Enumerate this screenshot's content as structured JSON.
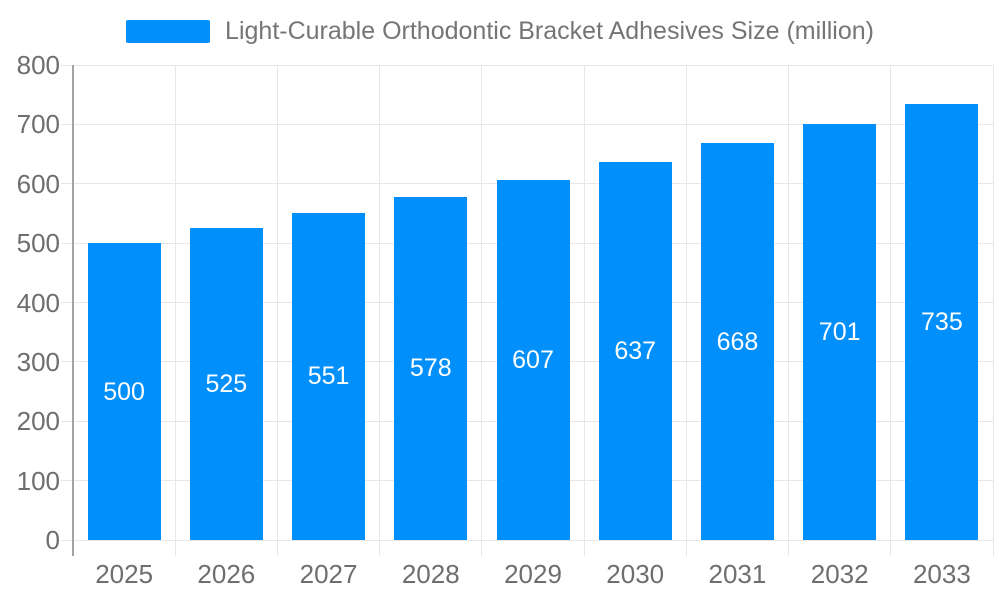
{
  "legend": {
    "label": "Light-Curable Orthodontic Bracket Adhesives Size (million)",
    "swatch_color": "#008FFB"
  },
  "chart_data": {
    "type": "bar",
    "title": "Light-Curable Orthodontic Bracket Adhesives Size (million)",
    "categories": [
      "2025",
      "2026",
      "2027",
      "2028",
      "2029",
      "2030",
      "2031",
      "2032",
      "2033"
    ],
    "values": [
      500,
      525,
      551,
      578,
      607,
      637,
      668,
      701,
      735
    ],
    "xlabel": "",
    "ylabel": "",
    "ylim": [
      0,
      800
    ],
    "ytick_step": 100,
    "ytick_labels": [
      "0",
      "100",
      "200",
      "300",
      "400",
      "500",
      "600",
      "700",
      "800"
    ],
    "grid": true,
    "legend_position": "top-center",
    "bar_color": "#008FFB",
    "value_label_color": "#ffffff",
    "axis_label_color": "#6e6e6e",
    "grid_color": "#e7e7e7",
    "axis_line_color": "#a3a3a3"
  }
}
